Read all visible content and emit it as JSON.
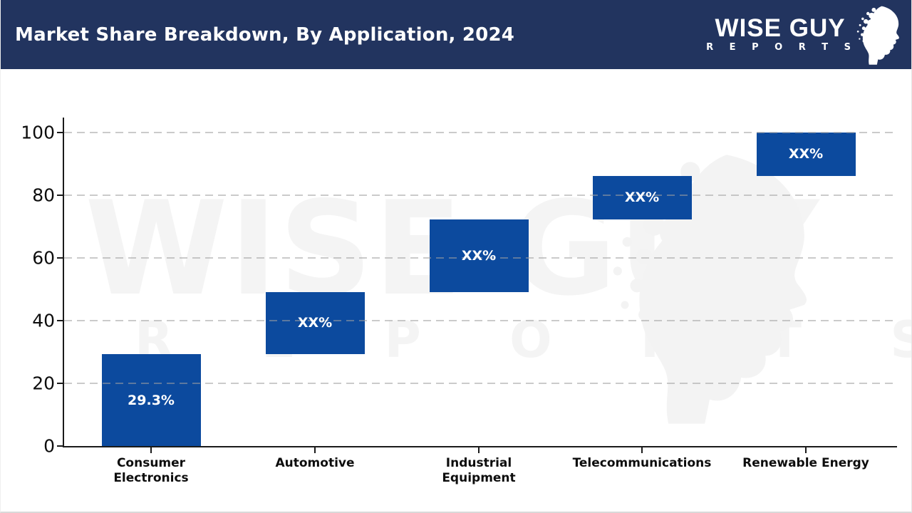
{
  "header": {
    "title": "Market Share Breakdown, By Application, 2024",
    "bg_color": "#22345f",
    "logo": {
      "line1": "WISE GUY",
      "line2": "R E P O R T S"
    }
  },
  "watermark": {
    "line1": "WISE GUY",
    "line2": "R E P O R T S"
  },
  "chart_data": {
    "type": "bar",
    "subtype": "waterfall",
    "title": "Market Share Breakdown, By Application, 2024",
    "categories": [
      "Consumer Electronics",
      "Automotive",
      "Industrial Equipment",
      "Telecommunications",
      "Renewable Energy"
    ],
    "segments": [
      {
        "category": "Consumer Electronics",
        "label_lines": [
          "Consumer",
          "Electronics"
        ],
        "start": 0,
        "end": 29.3,
        "label": "29.3%"
      },
      {
        "category": "Automotive",
        "label_lines": [
          "Automotive"
        ],
        "start": 29.3,
        "end": 49.2,
        "label": "XX%"
      },
      {
        "category": "Industrial Equipment",
        "label_lines": [
          "Industrial",
          "Equipment"
        ],
        "start": 49.2,
        "end": 72.3,
        "label": "XX%"
      },
      {
        "category": "Telecommunications",
        "label_lines": [
          "Telecommunications"
        ],
        "start": 72.3,
        "end": 86.2,
        "label": "XX%"
      },
      {
        "category": "Renewable Energy",
        "label_lines": [
          "Renewable Energy"
        ],
        "start": 86.2,
        "end": 100,
        "label": "XX%"
      }
    ],
    "ylim": [
      0,
      100
    ],
    "yticks": [
      0,
      20,
      40,
      60,
      80,
      100
    ],
    "xlabel": "",
    "ylabel": "",
    "grid": "horizontal dashed",
    "legend": "none",
    "bar_color": "#0c4a9e",
    "bar_label_color": "#ffffff",
    "axis_color": "#1a1a1a"
  }
}
